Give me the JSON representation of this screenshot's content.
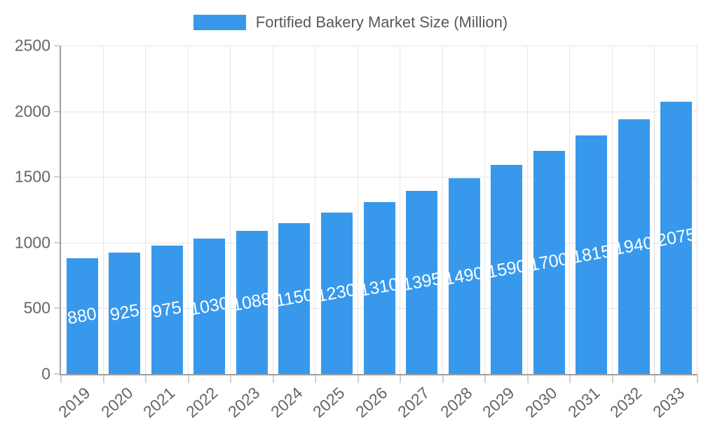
{
  "legend": {
    "label": "Fortified Bakery Market Size (Million)"
  },
  "colors": {
    "bar": "#3899ec",
    "value_label": "#ffffff",
    "axis_text": "#666666",
    "legend_text": "#58585a"
  },
  "chart_data": {
    "type": "bar",
    "title": "Fortified Bakery Market Size (Million)",
    "categories": [
      "2019",
      "2020",
      "2021",
      "2022",
      "2023",
      "2024",
      "2025",
      "2026",
      "2027",
      "2028",
      "2029",
      "2030",
      "2031",
      "2032",
      "2033"
    ],
    "values": [
      880,
      925,
      975,
      1030,
      1088,
      1150,
      1230,
      1310,
      1395,
      1490,
      1590,
      1700,
      1815,
      1940,
      2075
    ],
    "xlabel": "",
    "ylabel": "",
    "ylim": [
      0,
      2500
    ],
    "yticks": [
      0,
      500,
      1000,
      1500,
      2000,
      2500
    ],
    "grid": true,
    "legend_position": "top-center",
    "bar_color": "#3899ec",
    "value_label_placement": "inside-center"
  }
}
